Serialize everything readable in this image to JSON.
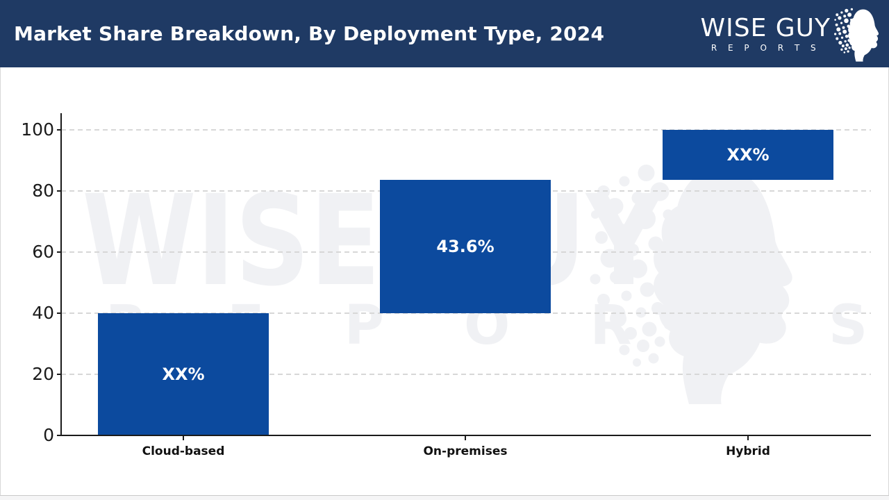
{
  "header": {
    "title": "Market Share Breakdown, By Deployment Type, 2024",
    "logo": {
      "line1": "WISE GUY",
      "line2": "R E P O R T S"
    }
  },
  "watermark": {
    "line1": "WISE GUY",
    "line2": "R E P O R T S"
  },
  "chart_data": {
    "type": "bar",
    "subtype": "floating-waterfall",
    "title": "Market Share Breakdown, By Deployment Type, 2024",
    "categories": [
      "Cloud-based",
      "On-premises",
      "Hybrid"
    ],
    "segments": [
      {
        "category": "Cloud-based",
        "start": 0,
        "end": 40,
        "label": "XX%"
      },
      {
        "category": "On-premises",
        "start": 40,
        "end": 83.6,
        "label": "43.6%"
      },
      {
        "category": "Hybrid",
        "start": 83.6,
        "end": 100,
        "label": "XX%"
      }
    ],
    "xlabel": "",
    "ylabel": "",
    "y_ticks": [
      0,
      20,
      40,
      60,
      80,
      100
    ],
    "ylim": [
      0,
      105
    ],
    "grid": "horizontal-dashed",
    "legend": "none",
    "bar_color": "#0c4a9e",
    "bar_label_color": "#ffffff"
  },
  "colors": {
    "header_navy": "#1f3a64",
    "bar_blue": "#0c4a9e",
    "grid": "#d7d7d7",
    "axis": "#1a1a1a",
    "watermark": "#f0f1f4"
  }
}
